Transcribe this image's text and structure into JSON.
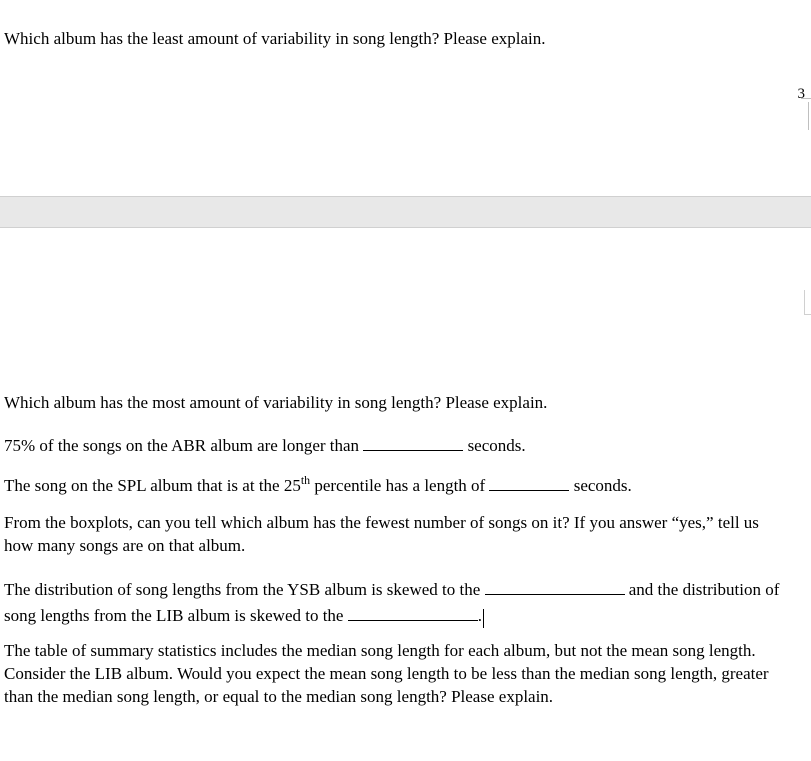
{
  "page_number": "3",
  "q1": "Which album has the least amount of variability in song length?  Please explain.",
  "q2": "Which album has the most amount of variability in song length?  Please explain.",
  "q3_pre": "75% of the songs on the ABR album are longer than ",
  "q3_post": " seconds.",
  "q4_pre": "The song on the SPL album that is at the 25",
  "q4_ord": "th",
  "q4_mid": " percentile has a length of ",
  "q4_post": " seconds.",
  "q5": "From the boxplots, can you tell which album has the fewest number of songs on it?  If you answer “yes,” tell us how many songs are on that album.",
  "q6_pre": "The distribution of song lengths from the YSB album is skewed to the ",
  "q6_mid": " and the distribution of song lengths from the LIB album is skewed to the ",
  "q6_post": ".",
  "q7": "The table of summary statistics includes the median song length for each album, but not the mean song length.  Consider the LIB album.  Would you expect the mean song length to be less than the median song length, greater than the median song length, or equal to the median song length?  Please explain."
}
